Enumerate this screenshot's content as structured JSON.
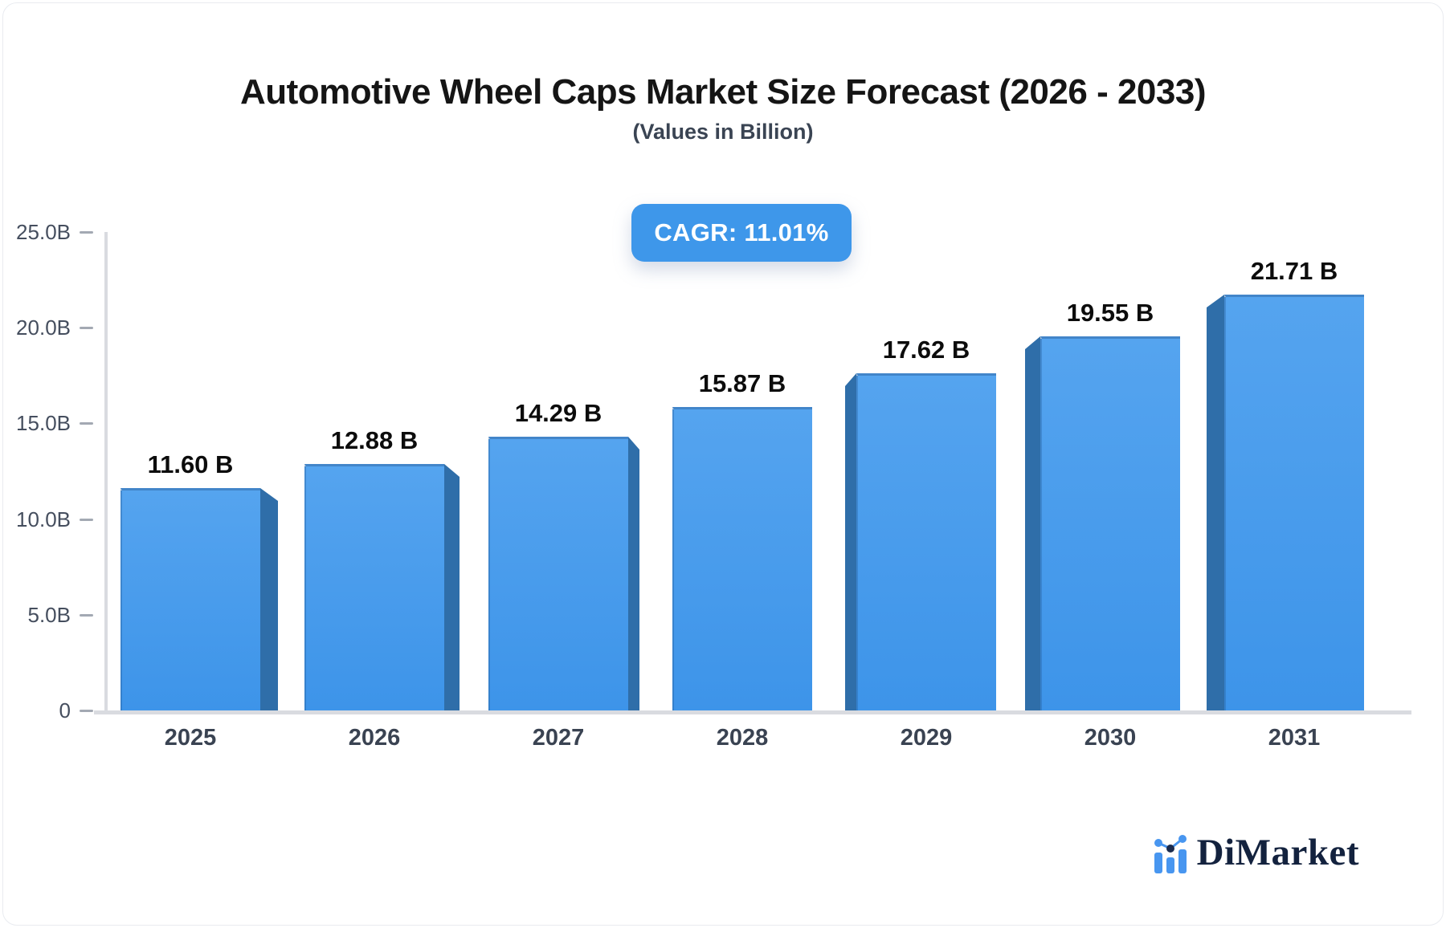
{
  "header": {
    "title": "Automotive Wheel Caps Market Size Forecast (2026 - 2033)",
    "subtitle": "(Values in Billion)",
    "cagr_label": "CAGR: 11.01%"
  },
  "chart_data": {
    "type": "bar",
    "title": "Automotive Wheel Caps Market Size Forecast (2026 - 2033)",
    "subtitle": "(Values in Billion)",
    "cagr_percent": "11.01%",
    "categories": [
      "2025",
      "2026",
      "2027",
      "2028",
      "2029",
      "2030",
      "2031"
    ],
    "values": [
      11.6,
      12.88,
      14.29,
      15.87,
      17.62,
      19.55,
      21.71
    ],
    "value_labels": [
      "11.60 B",
      "12.88 B",
      "14.29 B",
      "15.87 B",
      "17.62 B",
      "19.55 B",
      "21.71 B"
    ],
    "unit": "Billion",
    "ylim": [
      0,
      25
    ],
    "yticks": [
      {
        "value": 25,
        "label": "25.0B"
      },
      {
        "value": 20,
        "label": "20.0B"
      },
      {
        "value": 15,
        "label": "15.0B"
      },
      {
        "value": 10,
        "label": "10.0B"
      },
      {
        "value": 5,
        "label": "5.0B"
      },
      {
        "value": 0,
        "label": "0"
      }
    ],
    "grid": "ticks-only",
    "legend": "none",
    "bar_style": "pseudo-3d"
  },
  "branding": {
    "logo_text": "DiMarket",
    "logo_icon": "bar-chart-logo-icon"
  },
  "colors": {
    "bar_face_top": "#55a4ef",
    "bar_face_bottom": "#3d94e9",
    "bar_side": "#2f6ea9",
    "badge_background": "#3e97ea",
    "badge_text": "#ffffff",
    "axis_line": "#d9dbe0",
    "tick_dash": "#a3a9b3",
    "axis_label": "#454e5e",
    "year_label": "#3a4352",
    "value_label": "#0c0c0c",
    "title": "#151515",
    "subtitle": "#3a4453",
    "logo_text": "#13223e",
    "logo_blue": "#4896f0"
  }
}
